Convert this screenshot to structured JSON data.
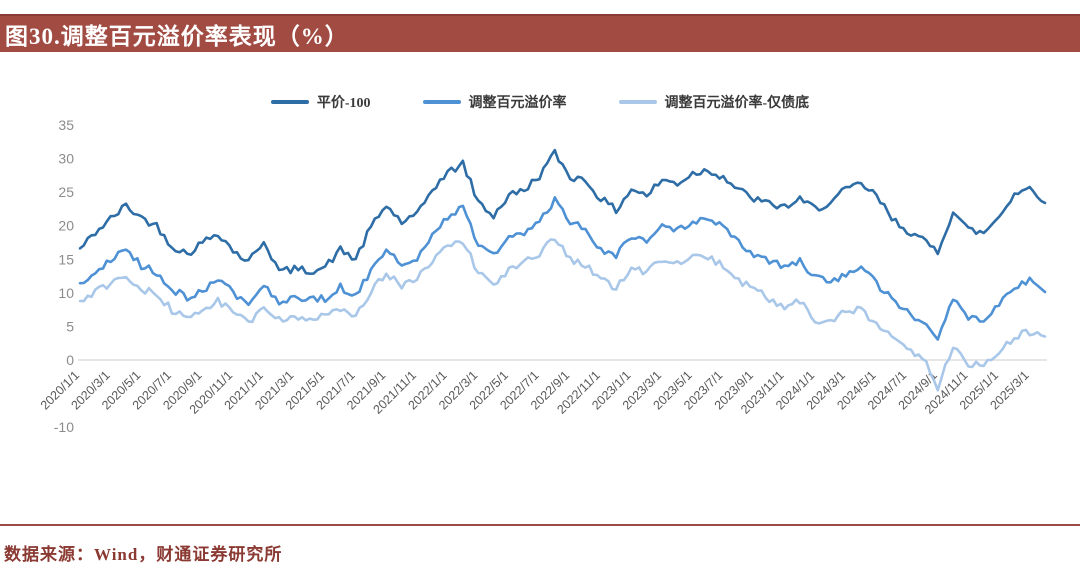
{
  "figure": {
    "title": "图30.调整百元溢价率表现（%）",
    "source": "数据来源：Wind，财通证券研究所"
  },
  "colors": {
    "title_bar_bg": "#A14B43",
    "title_text": "#FFFFFF",
    "source_text": "#8B3A33",
    "divider_rule": "#9C4A44",
    "y_axis_text": "#8C8C8C",
    "x_axis_text": "#595959",
    "zero_line": "#D6D6D6",
    "series_dark_blue": "#2E6DA6",
    "series_mid_blue": "#4E91D4",
    "series_light_blue": "#A9C7E8"
  },
  "chart_data": {
    "type": "line",
    "title": "图30.调整百元溢价率表现（%）",
    "ylabel": "",
    "xlabel": "",
    "ylim": [
      -10,
      35
    ],
    "yticks": [
      35,
      30,
      25,
      20,
      15,
      10,
      5,
      0,
      -10
    ],
    "grid": false,
    "legend_position": "top-center",
    "x_monthly": [
      "2020/1",
      "2020/2",
      "2020/3",
      "2020/4",
      "2020/5",
      "2020/6",
      "2020/7",
      "2020/8",
      "2020/9",
      "2020/10",
      "2020/11",
      "2020/12",
      "2021/1",
      "2021/2",
      "2021/3",
      "2021/4",
      "2021/5",
      "2021/6",
      "2021/7",
      "2021/8",
      "2021/9",
      "2021/10",
      "2021/11",
      "2021/12",
      "2022/1",
      "2022/2",
      "2022/3",
      "2022/4",
      "2022/5",
      "2022/6",
      "2022/7",
      "2022/8",
      "2022/9",
      "2022/10",
      "2022/11",
      "2022/12",
      "2023/1",
      "2023/2",
      "2023/3",
      "2023/4",
      "2023/5",
      "2023/6",
      "2023/7",
      "2023/8",
      "2023/9",
      "2023/10",
      "2023/11",
      "2023/12",
      "2024/1",
      "2024/2",
      "2024/3",
      "2024/4",
      "2024/5",
      "2024/6",
      "2024/7",
      "2024/8",
      "2024/9",
      "2024/10",
      "2024/11",
      "2024/12",
      "2025/1",
      "2025/2",
      "2025/3",
      "2025/4"
    ],
    "xtick_labels": [
      "2020/1/1",
      "2020/3/1",
      "2020/5/1",
      "2020/7/1",
      "2020/9/1",
      "2020/11/1",
      "2021/1/1",
      "2021/3/1",
      "2021/5/1",
      "2021/7/1",
      "2021/9/1",
      "2021/11/1",
      "2022/1/1",
      "2022/3/1",
      "2022/5/1",
      "2022/7/1",
      "2022/9/1",
      "2022/11/1",
      "2023/1/1",
      "2023/3/1",
      "2023/5/1",
      "2023/7/1",
      "2023/9/1",
      "2023/11/1",
      "2024/1/1",
      "2024/3/1",
      "2024/5/1",
      "2024/7/1",
      "2024/9/1",
      "2024/11/1",
      "2025/1/1",
      "2025/3/1"
    ],
    "series": [
      {
        "name": "平价-100",
        "color": "#2E6DA6",
        "values": [
          16.5,
          19.0,
          21.0,
          23.0,
          21.2,
          20.0,
          17.0,
          15.8,
          17.5,
          19.0,
          16.3,
          14.6,
          17.8,
          13.2,
          13.5,
          13.3,
          13.8,
          16.4,
          15.0,
          19.8,
          23.0,
          20.5,
          21.5,
          25.5,
          27.8,
          29.3,
          23.5,
          21.5,
          24.5,
          25.3,
          27.5,
          30.8,
          27.3,
          26.8,
          24.0,
          22.3,
          25.5,
          24.5,
          26.8,
          26.3,
          27.8,
          28.3,
          27.3,
          25.3,
          24.0,
          23.2,
          22.8,
          23.8,
          22.6,
          23.4,
          25.4,
          26.2,
          24.4,
          21.0,
          19.4,
          17.8,
          16.2,
          22.2,
          19.4,
          18.9,
          21.4,
          24.8,
          25.6,
          23.8
        ]
      },
      {
        "name": "调整百元溢价率",
        "color": "#4E91D4",
        "values": [
          11.0,
          13.0,
          14.8,
          16.4,
          14.0,
          13.0,
          10.4,
          9.4,
          10.5,
          12.0,
          10.0,
          8.6,
          11.4,
          8.6,
          9.0,
          8.8,
          9.2,
          10.9,
          9.6,
          13.4,
          16.6,
          14.2,
          15.0,
          18.8,
          21.2,
          22.6,
          17.5,
          15.5,
          18.0,
          19.0,
          21.0,
          23.8,
          20.4,
          19.5,
          16.5,
          15.5,
          18.4,
          17.8,
          19.8,
          19.4,
          20.4,
          20.9,
          19.7,
          17.4,
          15.8,
          14.7,
          14.0,
          14.6,
          12.4,
          11.6,
          13.0,
          13.5,
          11.5,
          9.0,
          7.0,
          6.0,
          3.0,
          9.4,
          6.4,
          6.0,
          8.0,
          11.0,
          11.8,
          10.5
        ]
      },
      {
        "name": "调整百元溢价率-仅债底",
        "color": "#A9C7E8",
        "values": [
          8.4,
          10.0,
          11.3,
          12.5,
          10.5,
          9.8,
          7.4,
          6.4,
          7.5,
          8.8,
          7.0,
          5.5,
          8.0,
          6.0,
          6.2,
          6.0,
          6.5,
          7.7,
          6.6,
          10.0,
          13.0,
          11.0,
          12.0,
          14.8,
          16.8,
          17.8,
          13.0,
          11.0,
          13.5,
          14.5,
          16.0,
          18.4,
          15.0,
          14.0,
          12.0,
          10.8,
          13.8,
          13.2,
          14.7,
          14.2,
          15.1,
          15.4,
          14.0,
          11.8,
          10.4,
          9.2,
          8.0,
          8.6,
          6.0,
          6.0,
          7.2,
          7.5,
          5.0,
          3.4,
          1.5,
          0.5,
          -4.5,
          2.2,
          -0.5,
          -1.0,
          0.8,
          3.6,
          4.2,
          3.0
        ]
      }
    ]
  }
}
